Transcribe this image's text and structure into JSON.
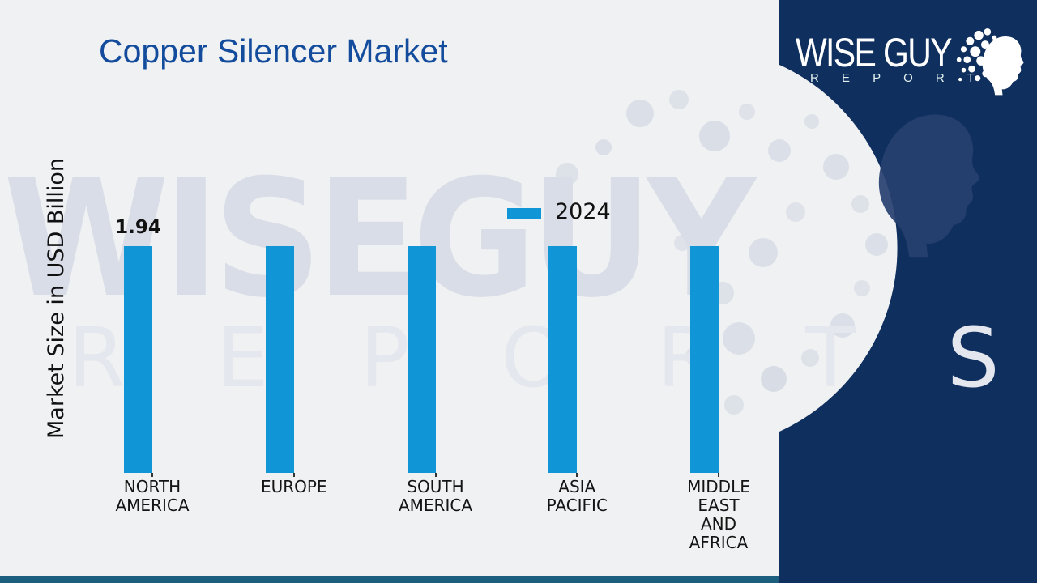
{
  "page": {
    "title": "Copper Silencer Market",
    "branding": {
      "logo_primary": "WISE GUY",
      "logo_secondary": "R E P O R T S",
      "watermark_primary": "WISEGUY",
      "watermark_secondary": "R E P O R T S"
    }
  },
  "chart_data": {
    "type": "bar",
    "title": "Copper Silencer Market",
    "xlabel": "",
    "ylabel": "Market Size in USD Billion",
    "categories": [
      "NORTH AMERICA",
      "EUROPE",
      "SOUTH AMERICA",
      "ASIA PACIFIC",
      "MIDDLE EAST AND AFRICA"
    ],
    "series": [
      {
        "name": "2024",
        "values": [
          1.94,
          1.94,
          1.94,
          1.94,
          1.94
        ]
      }
    ],
    "bar_labels": [
      "1.94",
      "",
      "",
      "",
      ""
    ],
    "legend": {
      "entries": [
        "2024"
      ],
      "position": "top-center-right"
    },
    "ylim": [
      0,
      2.2
    ],
    "grid": false,
    "note": "all bars rendered at equal height; only the first bar carries a printed value"
  },
  "colors": {
    "background": "#f0f1f2",
    "bar_blue": "#1095d6",
    "title_blue": "#134c9d",
    "navy_panel": "#0f2f5f",
    "navy_face": "#26406f",
    "teal_strip": "#1b5e7e",
    "watermark_text": "#d9dde7",
    "watermark_text2": "#e4e7ee",
    "watermark_dots": "#cdd4e0"
  }
}
